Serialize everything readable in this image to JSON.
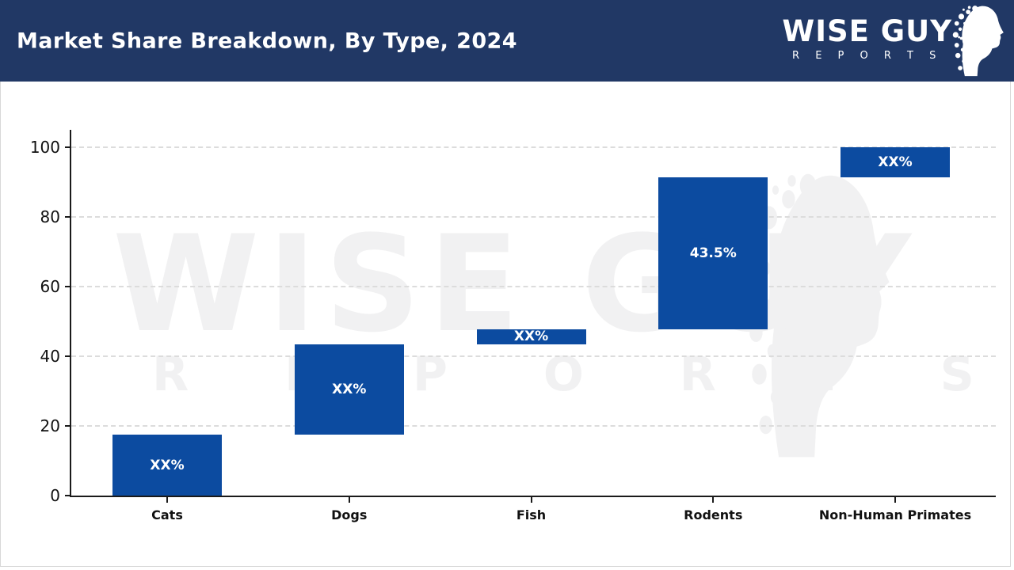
{
  "header": {
    "title": "Market Share Breakdown, By Type, 2024",
    "background_color": "#213865",
    "logo": {
      "line1": "WISE GUY",
      "line2": "R E P O R T S"
    }
  },
  "watermark": {
    "line1": "WISE GUY",
    "line2": "R E P O R T S"
  },
  "chart_data": {
    "type": "bar",
    "subtype": "waterfall",
    "title": "Market Share Breakdown, By Type, 2024",
    "categories": [
      "Cats",
      "Dogs",
      "Fish",
      "Rodents",
      "Non-Human Primates"
    ],
    "segments": [
      {
        "category": "Cats",
        "start": 0,
        "end": 17.4,
        "label": "XX%"
      },
      {
        "category": "Dogs",
        "start": 17.4,
        "end": 43.5,
        "label": "XX%"
      },
      {
        "category": "Fish",
        "start": 43.5,
        "end": 47.8,
        "label": "XX%"
      },
      {
        "category": "Rodents",
        "start": 47.8,
        "end": 91.3,
        "label": "43.5%"
      },
      {
        "category": "Non-Human Primates",
        "start": 91.3,
        "end": 100,
        "label": "XX%"
      }
    ],
    "y_ticks": [
      0,
      20,
      40,
      60,
      80,
      100
    ],
    "ylim": [
      0,
      105
    ],
    "xlabel": "",
    "ylabel": "",
    "legend": "none",
    "grid": "horizontal-dashed",
    "grid_color": "#dcdcdc",
    "bar_color": "#0c4ba0",
    "bar_label_color": "#ffffff",
    "axis_color": "#1a1a1a"
  }
}
